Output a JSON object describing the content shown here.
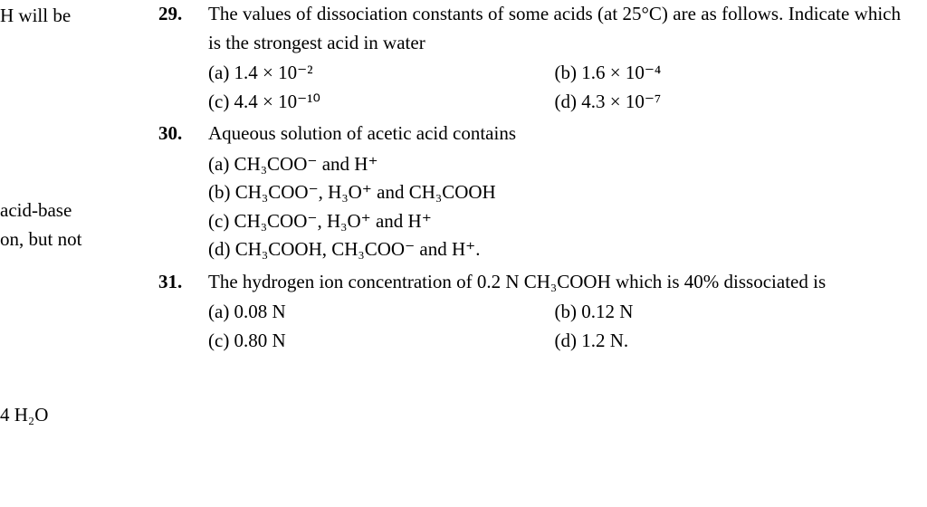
{
  "fragments": {
    "f1": "H will be",
    "f2": "acid-base",
    "f3": "on, but not",
    "f4": "4 H₂O"
  },
  "q29": {
    "num": "29.",
    "text": "The values of dissociation constants of some acids (at 25°C) are as follows. Indicate which is the strongest acid in water",
    "a": "(a) 1.4 × 10⁻²",
    "b": "(b) 1.6 × 10⁻⁴",
    "c": "(c) 4.4 × 10⁻¹⁰",
    "d": "(d) 4.3 × 10⁻⁷"
  },
  "q30": {
    "num": "30.",
    "text": "Aqueous solution of acetic acid contains",
    "a": "(a) CH₃COO⁻ and H⁺",
    "b": "(b) CH₃COO⁻, H₃O⁺ and CH₃COOH",
    "c": "(c) CH₃COO⁻, H₃O⁺ and H⁺",
    "d": "(d) CH₃COOH, CH₃COO⁻ and H⁺."
  },
  "q31": {
    "num": "31.",
    "text": "The hydrogen ion concentration of 0.2 N CH₃COOH which is 40% dissociated is",
    "a": "(a) 0.08 N",
    "b": "(b) 0.12 N",
    "c": "(c) 0.80 N",
    "d": "(d) 1.2 N."
  }
}
